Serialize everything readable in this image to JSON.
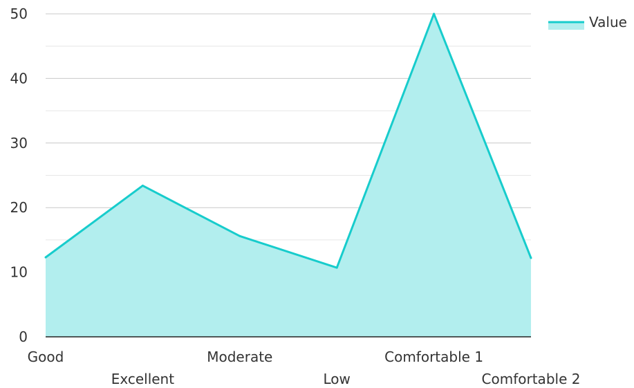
{
  "chart_data": {
    "type": "area",
    "categories": [
      "Good",
      "Excellent",
      "Moderate",
      "Low",
      "Comfortable 1",
      "Comfortable 2"
    ],
    "series": [
      {
        "name": "Value",
        "values": [
          12.3,
          23.4,
          15.6,
          10.7,
          50,
          12.2
        ]
      }
    ],
    "y_ticks": [
      "0",
      "10",
      "20",
      "30",
      "40",
      "50"
    ],
    "ylim": [
      0,
      50
    ],
    "grid": true,
    "legend": "top-right",
    "colors": {
      "line": "#17cccc",
      "fill": "#b2eeee",
      "grid_major": "#c8c8c8",
      "grid_minor": "#e6e6e6",
      "axis": "#222222"
    }
  }
}
